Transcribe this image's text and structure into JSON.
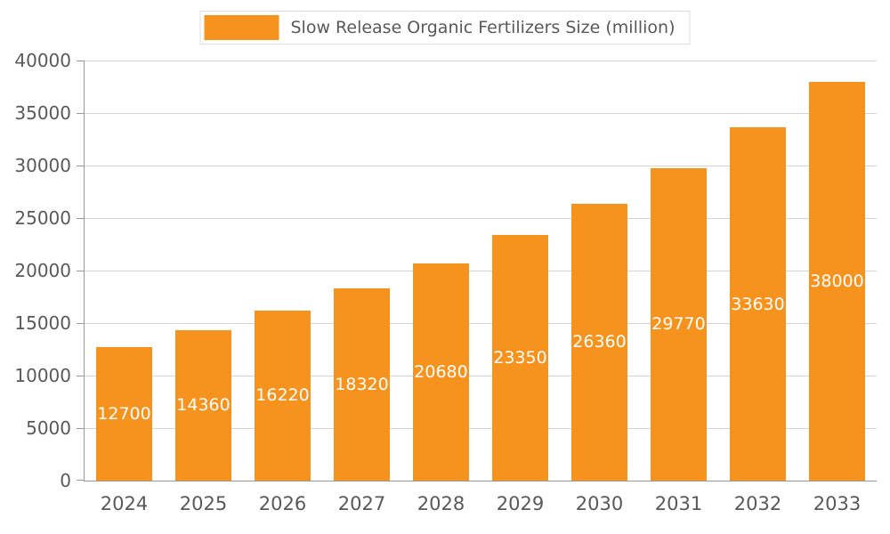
{
  "chart_data": {
    "type": "bar",
    "title": "Slow Release Organic Fertilizers Size (million)",
    "categories": [
      "2024",
      "2025",
      "2026",
      "2027",
      "2028",
      "2029",
      "2030",
      "2031",
      "2032",
      "2033"
    ],
    "values": [
      12700,
      14360,
      16220,
      18320,
      20680,
      23350,
      26360,
      29770,
      33630,
      38000
    ],
    "xlabel": "",
    "ylabel": "",
    "ylim": [
      0,
      40000
    ],
    "yticks": [
      0,
      5000,
      10000,
      15000,
      20000,
      25000,
      30000,
      35000,
      40000
    ],
    "grid": true,
    "legend_position": "top-center",
    "value_label_position": "inside-center",
    "colors": {
      "bar": "#f6921e",
      "value_label": "#ffffff",
      "axis": "#999999",
      "gridline": "#d4d4d4",
      "tick_text": "#595959",
      "legend_border": "#dcdcdc",
      "background": "#ffffff"
    }
  }
}
